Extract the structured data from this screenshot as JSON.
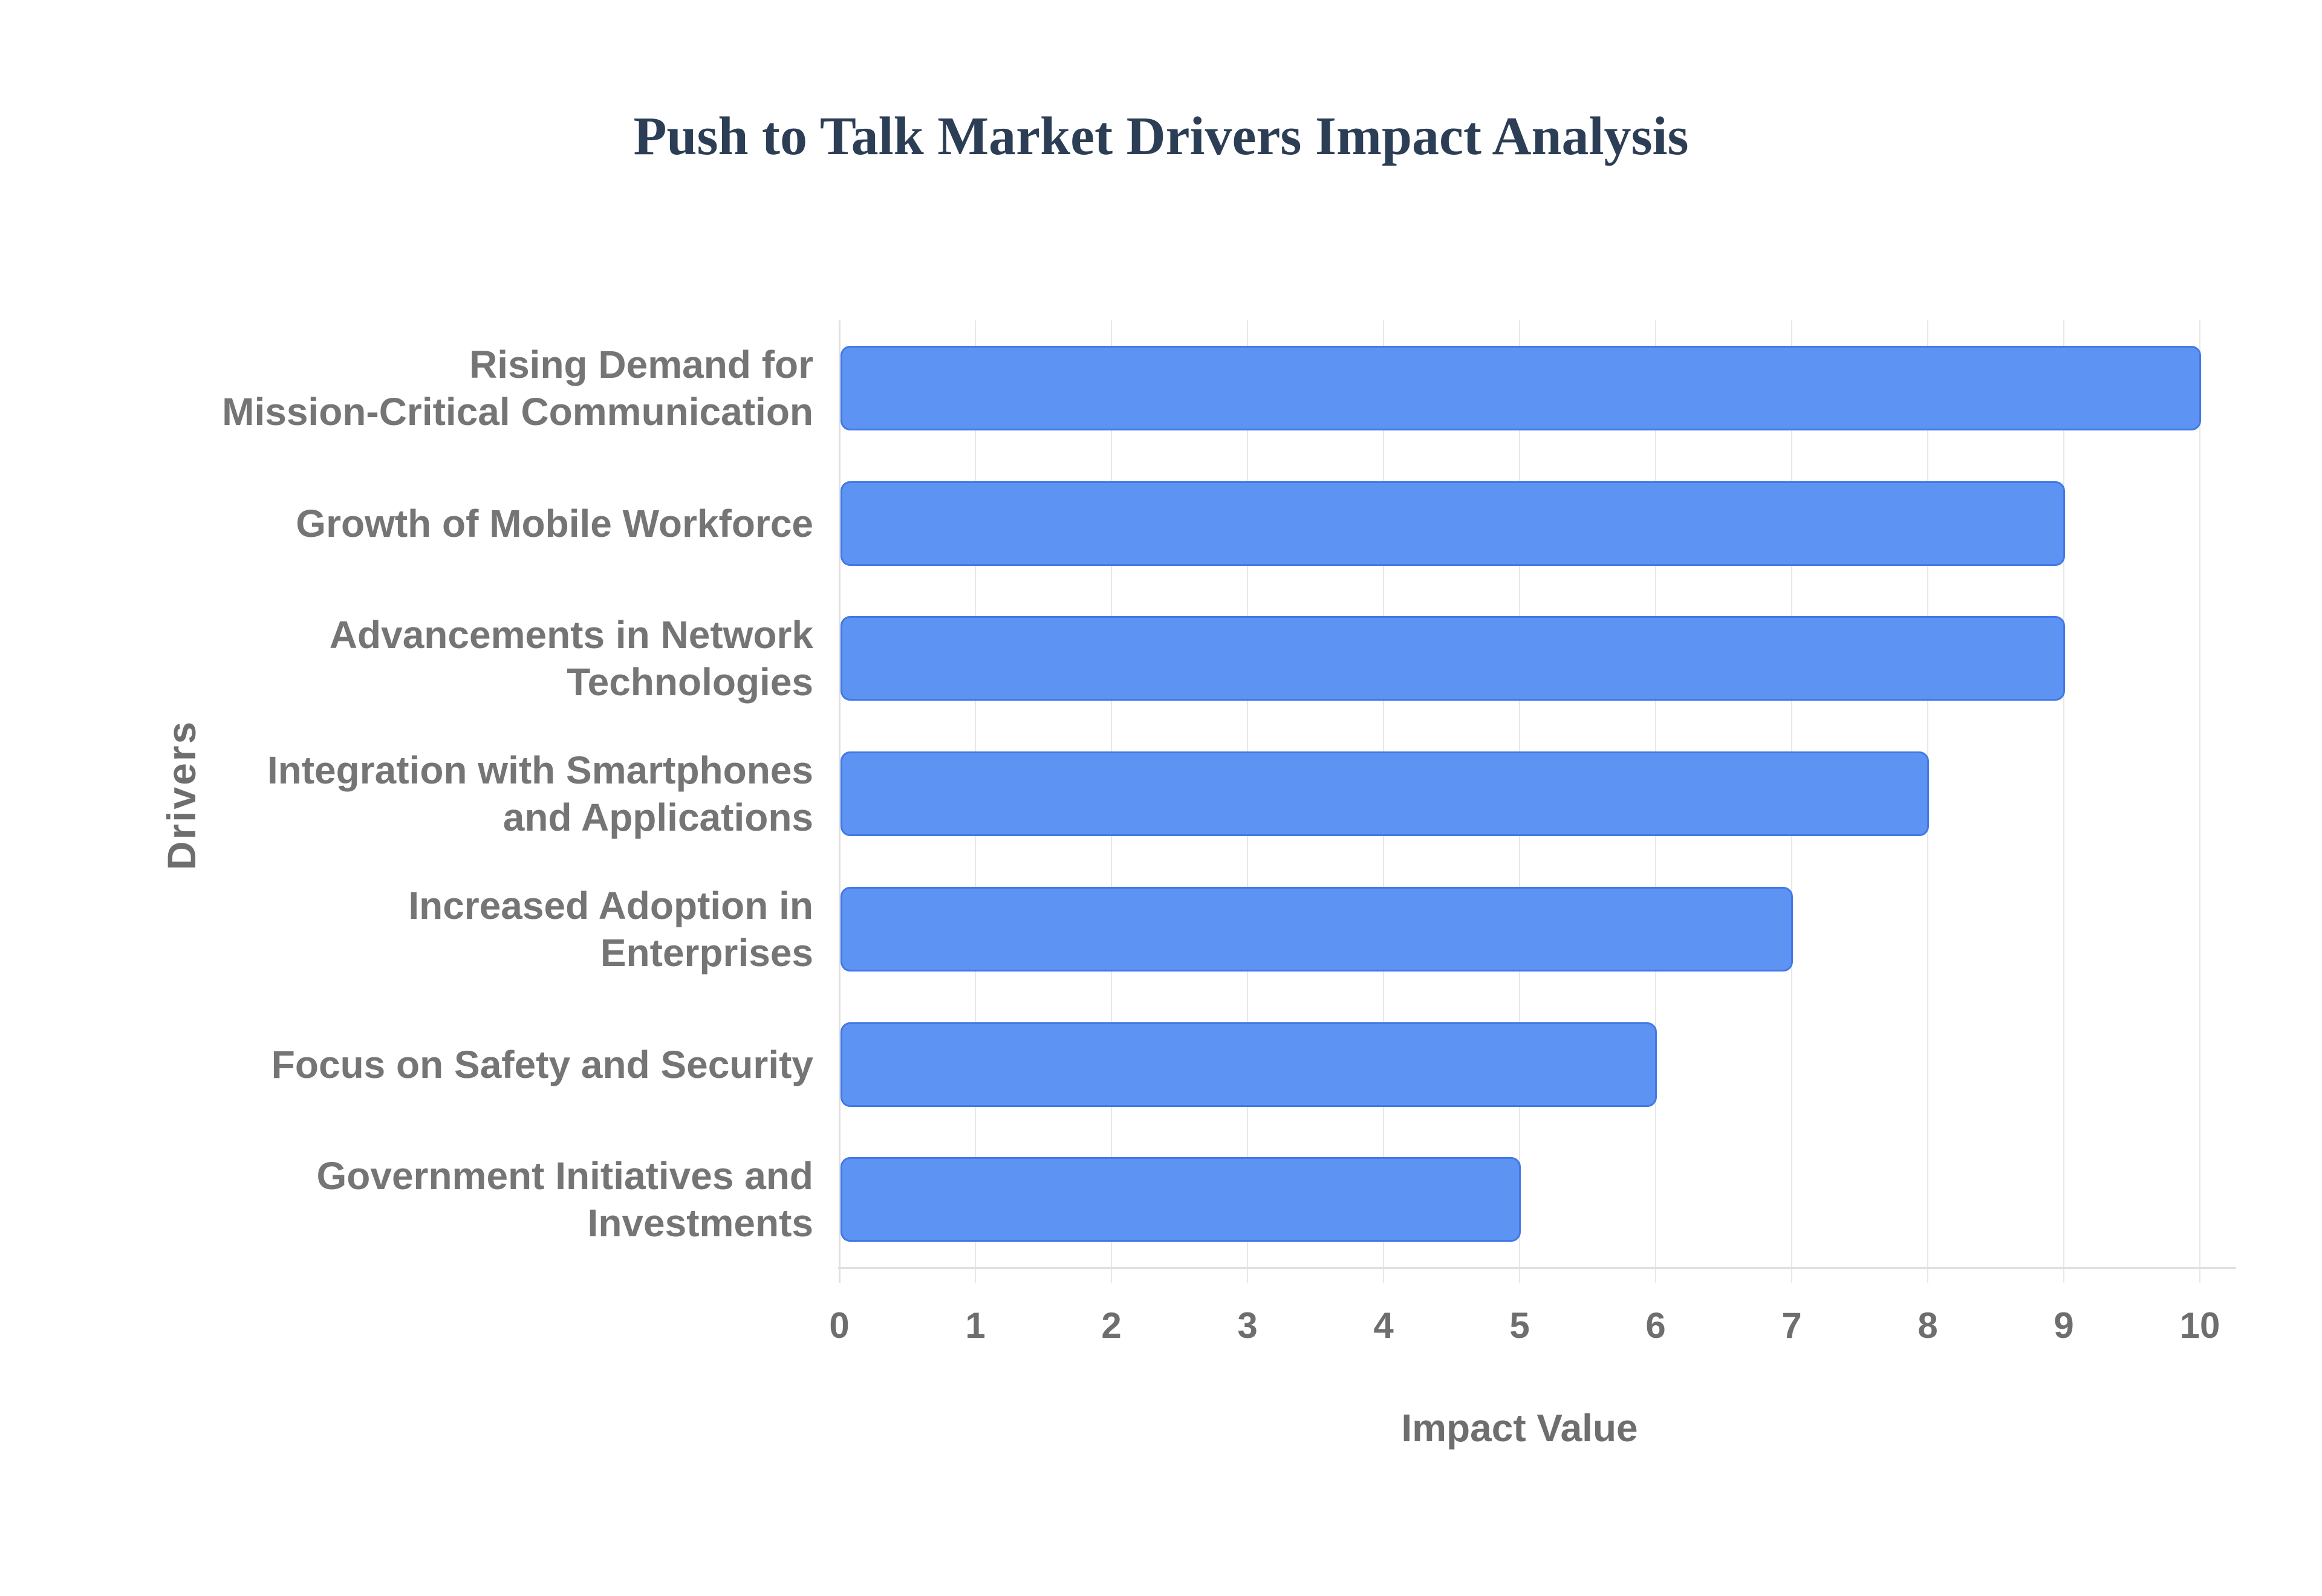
{
  "title": {
    "text": "Push to Talk Market Drivers Impact Analysis"
  },
  "chart_data": {
    "type": "bar",
    "orientation": "horizontal",
    "title": "Push to Talk Market Drivers Impact Analysis",
    "categories": [
      "Rising Demand for Mission-Critical Communication",
      "Growth of Mobile Workforce",
      "Advancements in Network Technologies",
      "Integration with Smartphones and Applications",
      "Increased Adoption in Enterprises",
      "Focus on Safety and Security",
      "Government Initiatives and Investments"
    ],
    "category_display": [
      "Rising Demand for\nMission-Critical Communication",
      "Growth of Mobile Workforce",
      "Advancements in Network\nTechnologies",
      "Integration with Smartphones\nand Applications",
      "Increased Adoption in\nEnterprises",
      "Focus on Safety and Security",
      "Government Initiatives and\nInvestments"
    ],
    "values": [
      10,
      9,
      9,
      8,
      7,
      6,
      5
    ],
    "xlabel": "Impact Value",
    "ylabel": "Drivers",
    "xlim": [
      0,
      10
    ],
    "xticks": [
      0,
      1,
      2,
      3,
      4,
      5,
      6,
      7,
      8,
      9,
      10
    ],
    "grid": true,
    "legend": false,
    "colors": {
      "bar_fill": "#5d93f2",
      "bar_border": "#4379e5",
      "title": "#2c3e55",
      "category_label": "#757575",
      "tick_label": "#6e6e6e",
      "axis_title": "#6e6e6e",
      "gridline": "#e8e8e8",
      "axis_line": "#e0e0e0"
    }
  }
}
